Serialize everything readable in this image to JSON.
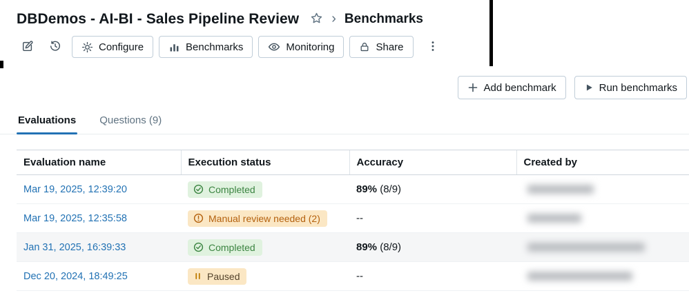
{
  "header": {
    "title": "DBDemos - AI-BI - Sales Pipeline Review",
    "separator": "›",
    "breadcrumb_current": "Benchmarks",
    "star_icon": "star-icon"
  },
  "toolbar": {
    "icons": {
      "edit": "pencil-square-icon",
      "history": "history-icon",
      "overflow": "kebab-menu-icon"
    },
    "buttons": [
      {
        "icon": "gear-icon",
        "label": "Configure"
      },
      {
        "icon": "bar-chart-icon",
        "label": "Benchmarks"
      },
      {
        "icon": "eye-icon",
        "label": "Monitoring"
      },
      {
        "icon": "lock-icon",
        "label": "Share"
      }
    ]
  },
  "actions": {
    "add_icon": "plus-icon",
    "add_label": "Add benchmark",
    "run_icon": "play-icon",
    "run_label": "Run benchmarks"
  },
  "tabs": [
    {
      "label": "Evaluations",
      "active": true
    },
    {
      "label": "Questions (9)",
      "active": false
    }
  ],
  "table": {
    "columns": [
      "Evaluation name",
      "Execution status",
      "Accuracy",
      "Created by"
    ],
    "status_styles": {
      "success": {
        "icon": "check-circle-icon"
      },
      "warning": {
        "icon": "alert-circle-icon"
      },
      "paused": {
        "icon": "pause-icon"
      }
    },
    "rows": [
      {
        "name": "Mar 19, 2025, 12:39:20",
        "status": "Completed",
        "status_type": "success",
        "accuracy_value": "89%",
        "accuracy_detail": "(8/9)",
        "created_by_redacted": true,
        "redacted_width": 96,
        "shaded": false
      },
      {
        "name": "Mar 19, 2025, 12:35:58",
        "status": "Manual review needed (2)",
        "status_type": "warning",
        "accuracy_value": "--",
        "accuracy_detail": "",
        "created_by_redacted": true,
        "redacted_width": 78,
        "shaded": false
      },
      {
        "name": "Jan 31, 2025, 16:39:33",
        "status": "Completed",
        "status_type": "success",
        "accuracy_value": "89%",
        "accuracy_detail": "(8/9)",
        "created_by_redacted": true,
        "redacted_width": 170,
        "shaded": true
      },
      {
        "name": "Dec 20, 2024, 18:49:25",
        "status": "Paused",
        "status_type": "paused",
        "accuracy_value": "--",
        "accuracy_detail": "",
        "created_by_redacted": true,
        "redacted_width": 152,
        "shaded": false
      }
    ]
  },
  "colors": {
    "accent_blue": "#2272B4",
    "link_blue": "#2272B4",
    "success_bg": "#E0F2DF",
    "success_text": "#3B8441",
    "warning_bg": "#FBE7C4",
    "warning_text": "#B4610E",
    "paused_icon": "#BD7B00",
    "row_shade": "#F5F6F7",
    "button_border": "#C0CDD8"
  }
}
